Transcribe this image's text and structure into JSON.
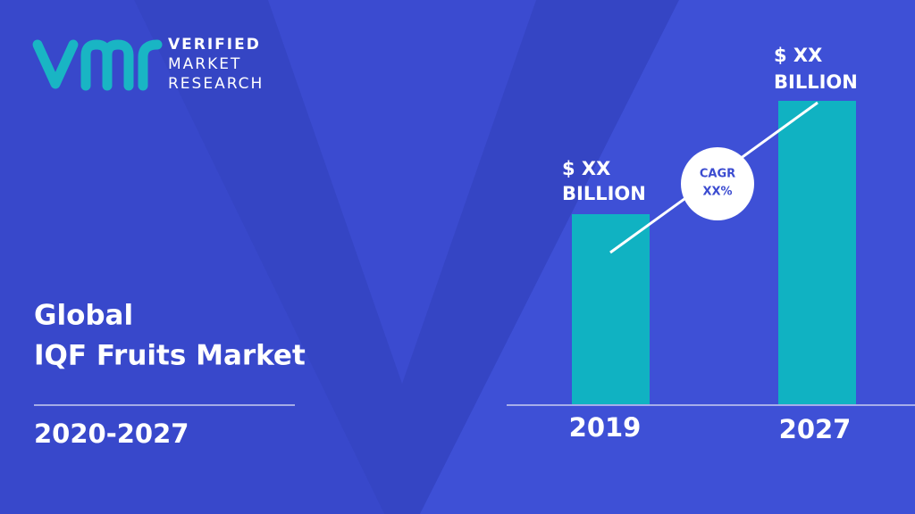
{
  "logo": {
    "lines": [
      "VERIFIED",
      "MARKET",
      "RESEARCH"
    ]
  },
  "title": {
    "lines": [
      "Global",
      "IQF Fruits Market"
    ]
  },
  "period": "2020-2027",
  "bars": [
    {
      "year": "2019",
      "label": [
        "$ XX",
        "BILLION"
      ]
    },
    {
      "year": "2027",
      "label": [
        "$ XX",
        "BILLION"
      ]
    }
  ],
  "cagr": {
    "lines": [
      "CAGR",
      "XX%"
    ]
  }
}
